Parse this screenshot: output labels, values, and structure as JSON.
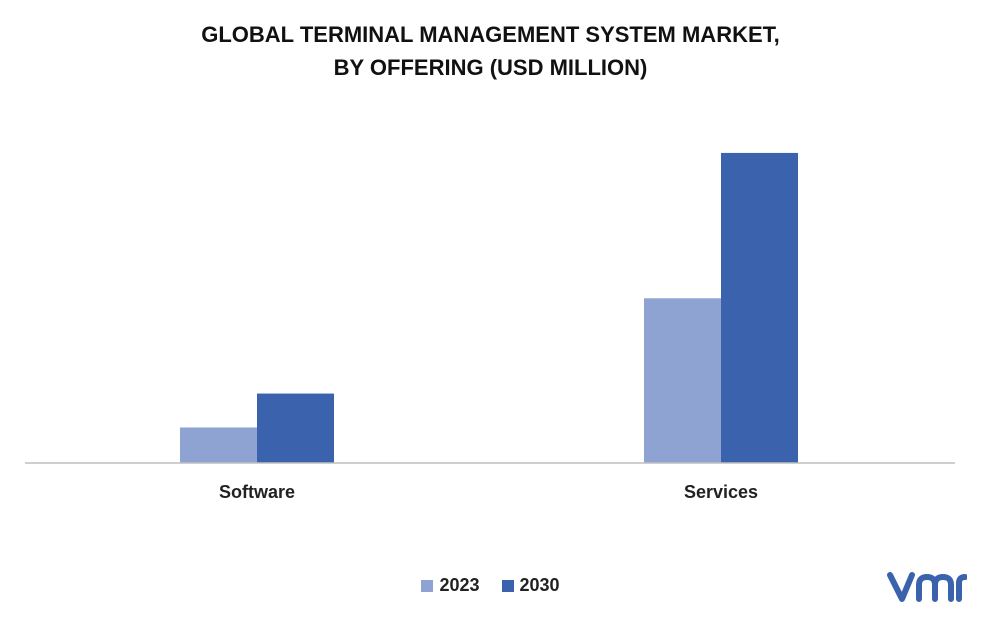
{
  "chart_data": {
    "type": "bar",
    "title_lines": [
      "GLOBAL TERMINAL MANAGEMENT SYSTEM MARKET,",
      "BY OFFERING (USD MILLION)"
    ],
    "categories": [
      "Software",
      "Services"
    ],
    "series": [
      {
        "name": "2023",
        "color": "#8fa3d3",
        "values": [
          11,
          51
        ]
      },
      {
        "name": "2030",
        "color": "#3b63ad",
        "values": [
          21.5,
          96
        ]
      }
    ],
    "ylim": [
      0,
      100
    ],
    "grid": false,
    "legend": "bottom-center"
  },
  "logo": {
    "icon": "vmr-logo-icon",
    "color": "#3b63ad"
  }
}
